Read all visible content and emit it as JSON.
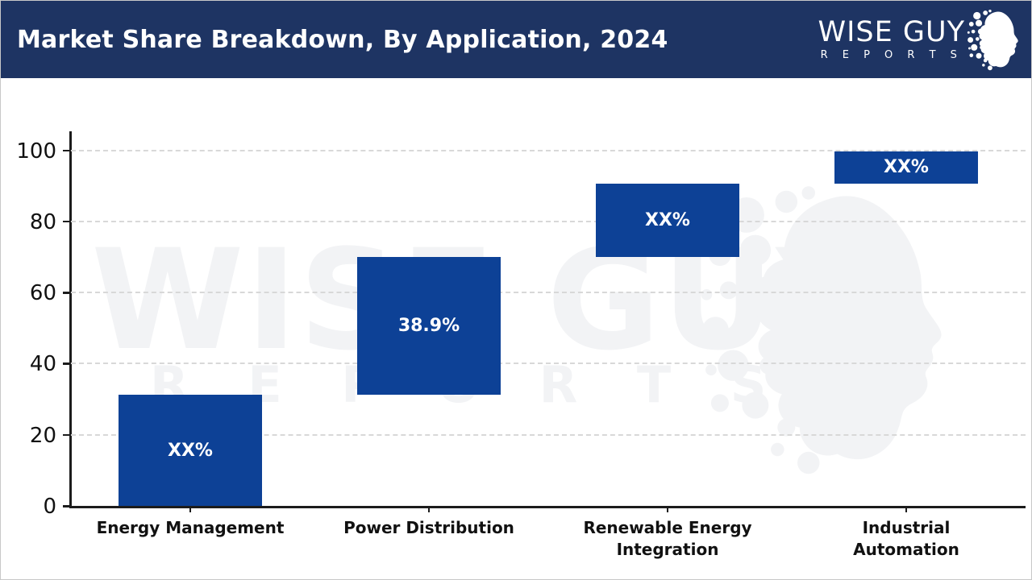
{
  "header": {
    "title": "Market Share Breakdown, By Application, 2024",
    "logo": {
      "line1": "WISE GUY",
      "line2": "R E P O R T S"
    }
  },
  "watermark": {
    "line1": "WISE GUY",
    "line2": "R E P O R T S"
  },
  "colors": {
    "header_bg": "#1e3463",
    "bar": "#0d4196",
    "grid": "#d8d8d8",
    "axis": "#1c1c1c",
    "watermark": "#f2f3f5",
    "bar_label_text": "#ffffff"
  },
  "chart_data": {
    "type": "bar",
    "subtype": "waterfall",
    "title": "Market Share Breakdown, By Application, 2024",
    "categories": [
      "Energy Management",
      "Power Distribution",
      "Renewable Energy\nIntegration",
      "Industrial\nAutomation"
    ],
    "segments": [
      {
        "category": "Energy Management",
        "start": 0,
        "end": 31.2,
        "label": "XX%"
      },
      {
        "category": "Power Distribution",
        "start": 31.2,
        "end": 70.1,
        "label": "38.9%"
      },
      {
        "category": "Renewable Energy\nIntegration",
        "start": 70.1,
        "end": 90.7,
        "label": "XX%"
      },
      {
        "category": "Industrial\nAutomation",
        "start": 90.7,
        "end": 99.8,
        "label": "XX%"
      }
    ],
    "yticks": [
      0,
      20,
      40,
      60,
      80,
      100
    ],
    "ylim": [
      0,
      104
    ],
    "xlabel": "",
    "ylabel": "",
    "grid": "horizontal-dashed",
    "legend": "none",
    "bar_width_frac": 0.15
  }
}
